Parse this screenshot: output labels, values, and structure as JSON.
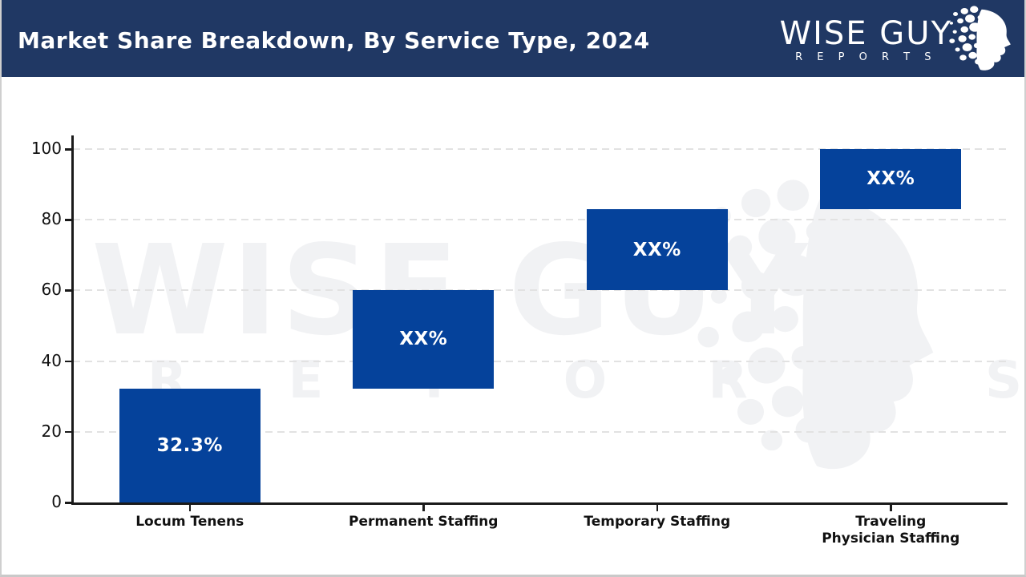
{
  "header": {
    "title": "Market Share Breakdown, By Service Type, 2024",
    "logo": {
      "wordmark": "WISE GUY",
      "subtext": "R E P O R T S"
    }
  },
  "watermark": {
    "wordmark": "WISE GUY",
    "subtext": "R E P O R T S"
  },
  "colors": {
    "header_bg": "#203864",
    "bar": "#05429b",
    "bar_label": "#ffffff",
    "gridline": "#e2e2e2",
    "axis": "#1a1a1a",
    "watermark": "#f1f2f4",
    "page_border": "#cfcfcf"
  },
  "chart_data": {
    "type": "bar",
    "subtype": "waterfall",
    "title": "Market Share Breakdown, By Service Type, 2024",
    "categories": [
      "Locum Tenens",
      "Permanent Staffing",
      "Temporary Staffing",
      "Traveling Physician Staffing"
    ],
    "x_label_lines": [
      [
        "Locum Tenens"
      ],
      [
        "Permanent Staffing"
      ],
      [
        "Temporary Staffing"
      ],
      [
        "Traveling",
        "Physician Staffing"
      ]
    ],
    "bars": [
      {
        "category": "Locum Tenens",
        "start": 0,
        "end": 32.3,
        "value": 32.3,
        "label": "32.3%"
      },
      {
        "category": "Permanent Staffing",
        "start": 32.3,
        "end": 60,
        "value": 27.7,
        "label": "XX%"
      },
      {
        "category": "Temporary Staffing",
        "start": 60,
        "end": 83,
        "value": 23,
        "label": "XX%"
      },
      {
        "category": "Traveling Physician Staffing",
        "start": 83,
        "end": 100,
        "value": 17,
        "label": "XX%"
      }
    ],
    "xlabel": "",
    "ylabel": "",
    "ylim": [
      0,
      100
    ],
    "yticks": [
      0,
      20,
      40,
      60,
      80,
      100
    ],
    "grid": "horizontal-dashed",
    "legend": "none"
  }
}
